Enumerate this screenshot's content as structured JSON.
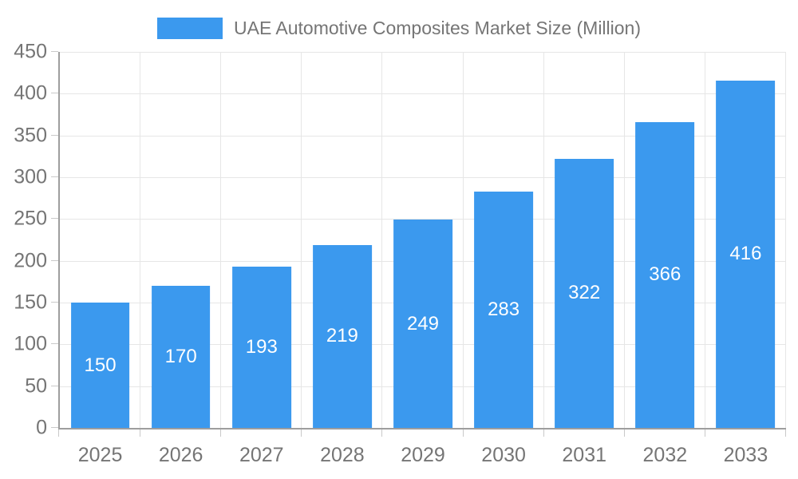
{
  "chart_data": {
    "type": "bar",
    "title": "UAE Automotive Composites Market Size (Million)",
    "categories": [
      "2025",
      "2026",
      "2027",
      "2028",
      "2029",
      "2030",
      "2031",
      "2032",
      "2033"
    ],
    "values": [
      150,
      170,
      193,
      219,
      249,
      283,
      322,
      366,
      416
    ],
    "xlabel": "",
    "ylabel": "",
    "ylim": [
      0,
      450
    ],
    "yticks": [
      0,
      50,
      100,
      150,
      200,
      250,
      300,
      350,
      400,
      450
    ],
    "grid": true,
    "legend_position": "top",
    "value_labels": "inside-center",
    "colors": {
      "bar": "#3b99ee",
      "axis": "#9e9e9e",
      "grid": "#e6e6e6",
      "tick": "#c9c9c9",
      "text": "#757575",
      "value_label": "#ffffff",
      "background": "#ffffff"
    }
  }
}
